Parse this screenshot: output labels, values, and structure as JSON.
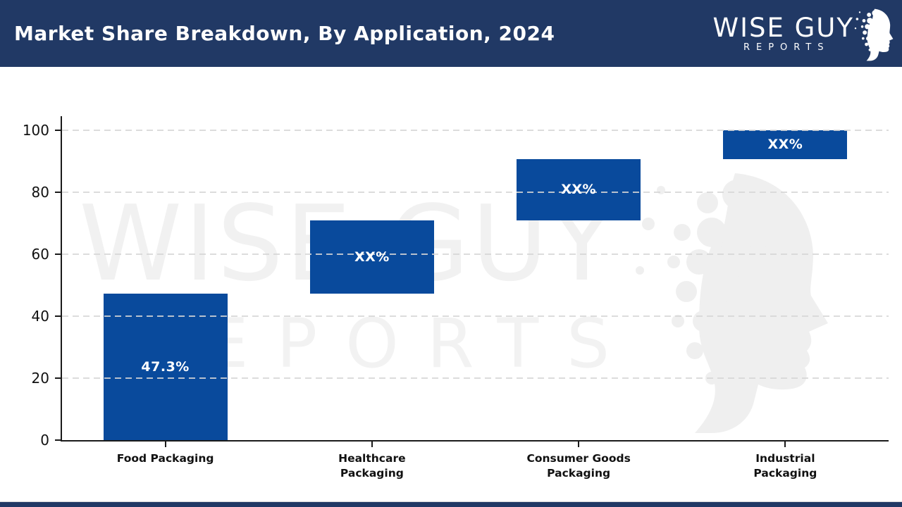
{
  "header": {
    "title": "Market Share Breakdown, By Application, 2024",
    "logo": {
      "line1": "WISE GUY",
      "line2": "REPORTS"
    }
  },
  "watermark": {
    "line1": "WISE GUY",
    "line2": "REPORTS"
  },
  "colors": {
    "header_bg": "#213965",
    "bar": "#094a9c",
    "grid": "#d9d9d9",
    "axis": "#1a1a1a",
    "watermark": "#f1f1f1"
  },
  "chart_data": {
    "type": "bar",
    "subtype": "floating-waterfall",
    "title": "Market Share Breakdown, By Application, 2024",
    "categories": [
      "Food Packaging",
      "Healthcare\nPackaging",
      "Consumer Goods\nPackaging",
      "Industrial\nPackaging"
    ],
    "segments": [
      {
        "category": "Food Packaging",
        "start": 0,
        "end": 47.3,
        "label": "47.3%"
      },
      {
        "category": "Healthcare Packaging",
        "start": 47.3,
        "end": 71.0,
        "label": "XX%"
      },
      {
        "category": "Consumer Goods Packaging",
        "start": 71.0,
        "end": 90.7,
        "label": "XX%"
      },
      {
        "category": "Industrial Packaging",
        "start": 90.7,
        "end": 100,
        "label": "XX%"
      }
    ],
    "ylim": [
      0,
      100
    ],
    "yticks": [
      0,
      20,
      40,
      60,
      80,
      100
    ],
    "xlabel": "",
    "ylabel": "",
    "grid": "horizontal-dashed",
    "legend": "none",
    "bar_color": "#094a9c"
  }
}
